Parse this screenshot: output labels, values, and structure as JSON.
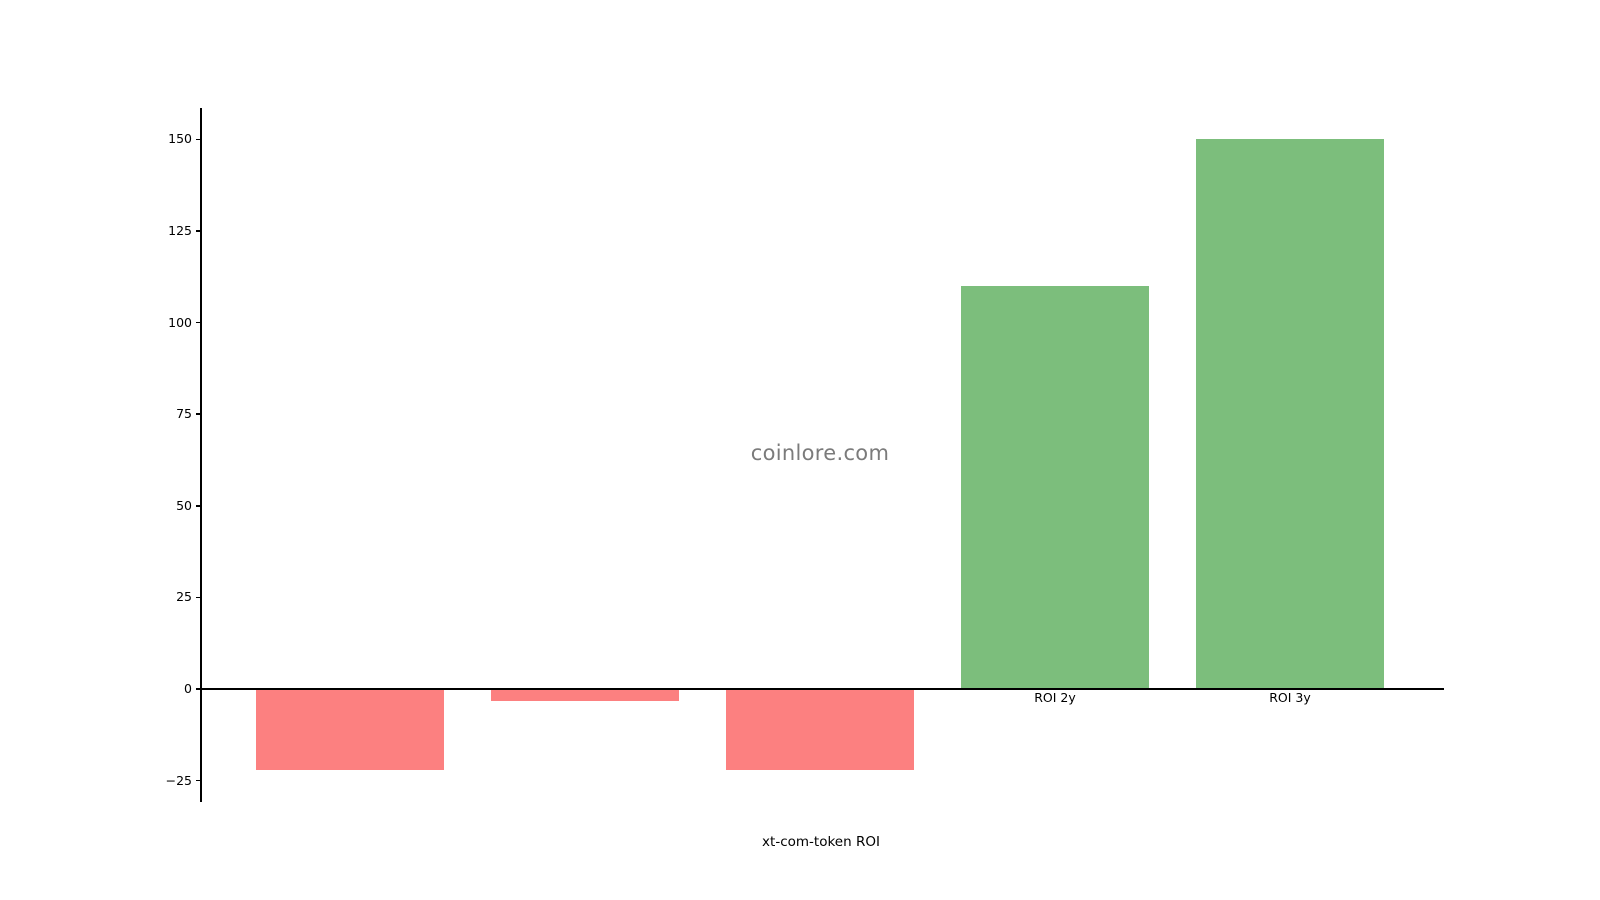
{
  "chart_data": {
    "type": "bar",
    "title": "xt-com-token ROI",
    "xlabel": "xt-com-token ROI",
    "ylabel": "",
    "watermark": "coinlore.com",
    "categories": [
      "",
      "",
      "",
      "ROI 2y",
      "ROI 3y"
    ],
    "values": [
      -22.2,
      -3.4,
      -22.2,
      110,
      150
    ],
    "bar_colors": [
      "#fc8080",
      "#fc8080",
      "#fc8080",
      "#7cbe7c",
      "#7cbe7c"
    ],
    "negative_color": "#fc8080",
    "positive_color": "#7cbe7c",
    "axis_color": "#000000",
    "watermark_color": "#7b7b7b",
    "yticks": [
      {
        "label": "150",
        "value": 150
      },
      {
        "label": "125",
        "value": 125
      },
      {
        "label": "100",
        "value": 100
      },
      {
        "label": "75",
        "value": 75
      },
      {
        "label": "50",
        "value": 50
      },
      {
        "label": "25",
        "value": 25
      },
      {
        "label": "0",
        "value": 0
      },
      {
        "label": "−25",
        "value": -25
      }
    ],
    "ylim": [
      -31,
      159
    ],
    "grid": false,
    "legend": null
  }
}
